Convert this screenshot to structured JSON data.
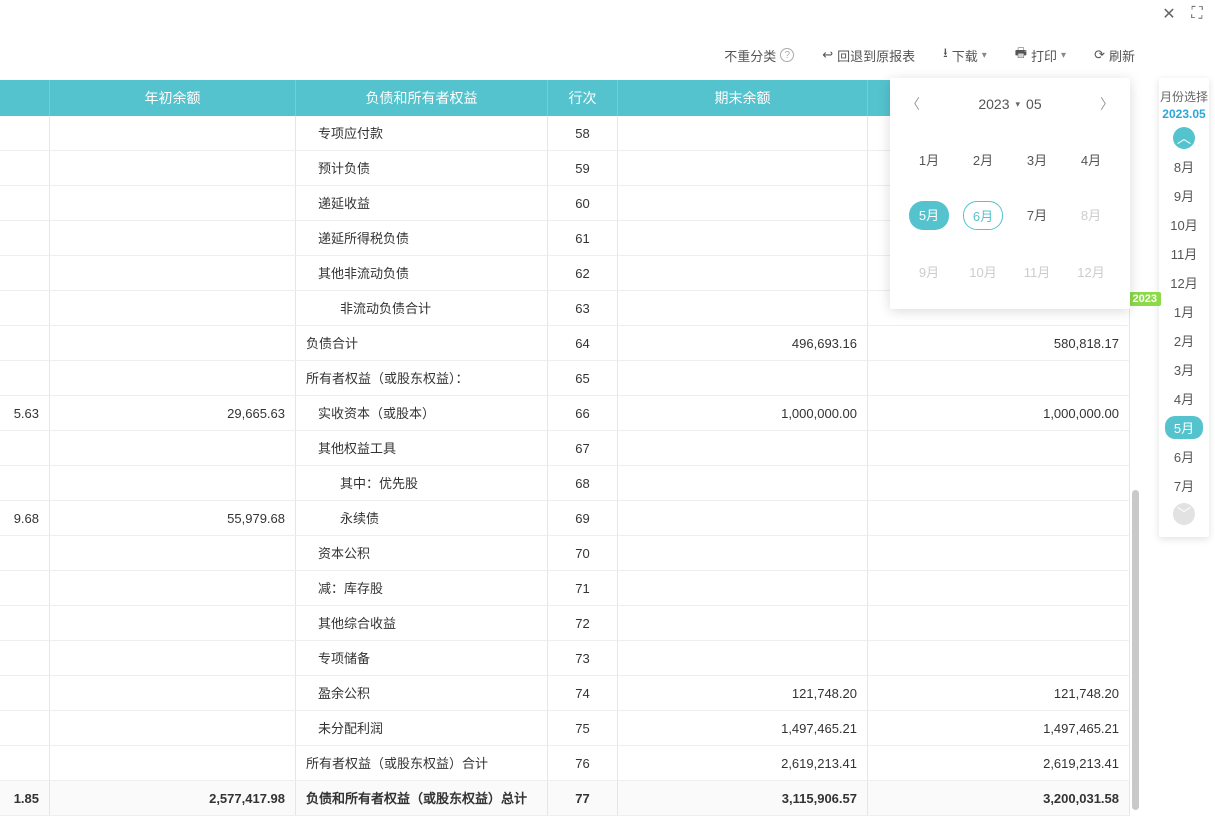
{
  "top_icons": {
    "close": "✕",
    "expand": "⛶"
  },
  "toolbar": {
    "noreclass": {
      "label": "不重分类"
    },
    "revert": {
      "label": "回退到原报表",
      "icon": "↩"
    },
    "download": {
      "label": "下载",
      "icon": "⭳"
    },
    "print": {
      "label": "打印",
      "icon": "🖶"
    },
    "refresh": {
      "label": "刷新",
      "icon": "⟳"
    }
  },
  "table": {
    "headers": {
      "col_b": "年初余额",
      "col_c": "负债和所有者权益",
      "col_d": "行次",
      "col_e": "期末余额"
    },
    "rows": [
      {
        "a_partial": "",
        "b": "",
        "c": "专项应付款",
        "ci": 1,
        "d": "58",
        "e": "",
        "f": ""
      },
      {
        "a_partial": "",
        "b": "",
        "c": "预计负债",
        "ci": 1,
        "d": "59",
        "e": "",
        "f": ""
      },
      {
        "a_partial": "",
        "b": "",
        "c": "递延收益",
        "ci": 1,
        "d": "60",
        "e": "",
        "f": ""
      },
      {
        "a_partial": "",
        "b": "",
        "c": "递延所得税负债",
        "ci": 1,
        "d": "61",
        "e": "",
        "f": ""
      },
      {
        "a_partial": "",
        "b": "",
        "c": "其他非流动负债",
        "ci": 1,
        "d": "62",
        "e": "",
        "f": ""
      },
      {
        "a_partial": "",
        "b": "",
        "c": "非流动负债合计",
        "ci": 2,
        "d": "63",
        "e": "",
        "f": ""
      },
      {
        "a_partial": "",
        "b": "",
        "c": "负债合计",
        "ci": 0,
        "d": "64",
        "e": "496,693.16",
        "f": "580,818.17"
      },
      {
        "a_partial": "",
        "b": "",
        "c": "所有者权益（或股东权益）：",
        "ci": 0,
        "d": "65",
        "e": "",
        "f": ""
      },
      {
        "a_partial": "5.63",
        "b": "29,665.63",
        "c": "实收资本（或股本）",
        "ci": 1,
        "d": "66",
        "e": "1,000,000.00",
        "f": "1,000,000.00"
      },
      {
        "a_partial": "",
        "b": "",
        "c": "其他权益工具",
        "ci": 1,
        "d": "67",
        "e": "",
        "f": ""
      },
      {
        "a_partial": "",
        "b": "",
        "c": "其中：优先股",
        "ci": 2,
        "d": "68",
        "e": "",
        "f": ""
      },
      {
        "a_partial": "9.68",
        "b": "55,979.68",
        "c": "永续债",
        "ci": 2,
        "d": "69",
        "e": "",
        "f": ""
      },
      {
        "a_partial": "",
        "b": "",
        "c": "资本公积",
        "ci": 1,
        "d": "70",
        "e": "",
        "f": ""
      },
      {
        "a_partial": "",
        "b": "",
        "c": "减：库存股",
        "ci": 1,
        "d": "71",
        "e": "",
        "f": ""
      },
      {
        "a_partial": "",
        "b": "",
        "c": "其他综合收益",
        "ci": 1,
        "d": "72",
        "e": "",
        "f": ""
      },
      {
        "a_partial": "",
        "b": "",
        "c": "专项储备",
        "ci": 1,
        "d": "73",
        "e": "",
        "f": ""
      },
      {
        "a_partial": "",
        "b": "",
        "c": "盈余公积",
        "ci": 1,
        "d": "74",
        "e": "121,748.20",
        "f": "121,748.20"
      },
      {
        "a_partial": "",
        "b": "",
        "c": "未分配利润",
        "ci": 1,
        "d": "75",
        "e": "1,497,465.21",
        "f": "1,497,465.21"
      },
      {
        "a_partial": "",
        "b": "",
        "c": "所有者权益（或股东权益）合计",
        "ci": 0,
        "d": "76",
        "e": "2,619,213.41",
        "f": "2,619,213.41"
      },
      {
        "a_partial": "1.85",
        "b": "2,577,417.98",
        "c": "负债和所有者权益（或股东权益）总计",
        "ci": 0,
        "d": "77",
        "e": "3,115,906.57",
        "f": "3,200,031.58",
        "total": true
      }
    ]
  },
  "datepicker": {
    "year": "2023",
    "month": "05",
    "months": [
      {
        "label": "1月",
        "state": ""
      },
      {
        "label": "2月",
        "state": ""
      },
      {
        "label": "3月",
        "state": ""
      },
      {
        "label": "4月",
        "state": ""
      },
      {
        "label": "5月",
        "state": "sel"
      },
      {
        "label": "6月",
        "state": "today"
      },
      {
        "label": "7月",
        "state": ""
      },
      {
        "label": "8月",
        "state": "disabled"
      },
      {
        "label": "9月",
        "state": "disabled"
      },
      {
        "label": "10月",
        "state": "disabled"
      },
      {
        "label": "11月",
        "state": "disabled"
      },
      {
        "label": "12月",
        "state": "disabled"
      }
    ]
  },
  "sidebar": {
    "title": "月份选择",
    "current": "2023.05",
    "year_badge": "2023",
    "months": [
      {
        "label": "8月"
      },
      {
        "label": "9月"
      },
      {
        "label": "10月"
      },
      {
        "label": "11月"
      },
      {
        "label": "12月",
        "year_break": true
      },
      {
        "label": "1月"
      },
      {
        "label": "2月"
      },
      {
        "label": "3月"
      },
      {
        "label": "4月"
      },
      {
        "label": "5月",
        "sel": true
      },
      {
        "label": "6月"
      },
      {
        "label": "7月"
      }
    ]
  },
  "colors": {
    "teal": "#54c3ce",
    "green_badge": "#8cd94a",
    "link_blue": "#2aa7d8"
  }
}
